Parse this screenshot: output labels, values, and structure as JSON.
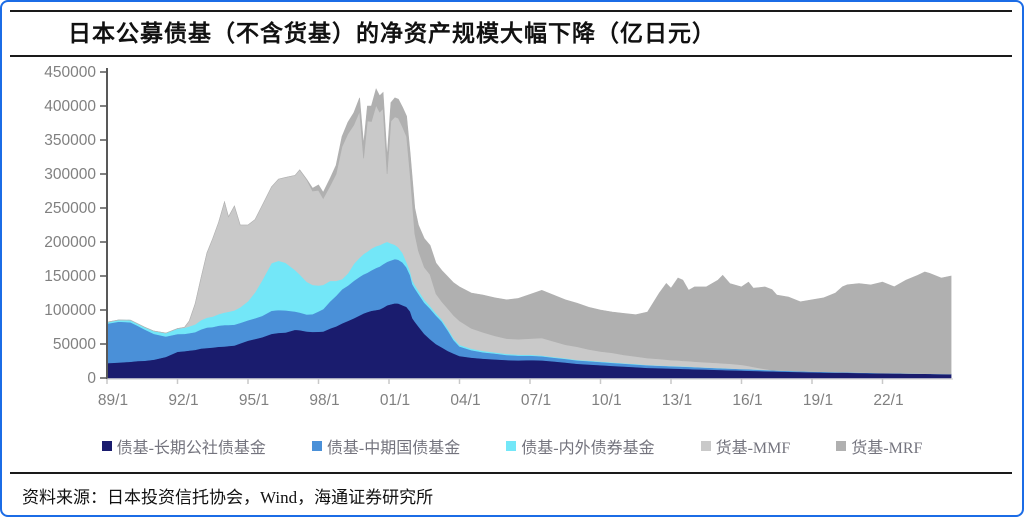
{
  "card": {
    "title": "日本公募债基（不含货基）的净资产规模大幅下降（亿日元）",
    "source_text": "资料来源：日本投资信托协会，Wind，海通证券研究所"
  },
  "colors": {
    "border_blue": "#1b6ce6",
    "rule_black": "#1a1a1a",
    "axis_dark": "#595959",
    "axis_light": "#c9c9c9",
    "tick_label_gray": "#808080"
  },
  "chart_data": {
    "type": "area",
    "stacked": true,
    "title": "日本公募债基（不含货基）的净资产规模大幅下降（亿日元）",
    "unit": "亿日元",
    "xlim": [
      1989,
      2025
    ],
    "ylim": [
      0,
      450000
    ],
    "grid": false,
    "legend_position": "bottom",
    "y_ticks": [
      0,
      50000,
      100000,
      150000,
      200000,
      250000,
      300000,
      350000,
      400000,
      450000
    ],
    "x_tick_labels": [
      "89/1",
      "92/1",
      "95/1",
      "98/1",
      "01/1",
      "04/1",
      "07/1",
      "10/1",
      "13/1",
      "16/1",
      "19/1",
      "22/1"
    ],
    "x_tick_years": [
      1989,
      1992,
      1995,
      1998,
      2001,
      2004,
      2007,
      2010,
      2013,
      2016,
      2019,
      2022
    ],
    "x": [
      1989,
      1989.5,
      1990,
      1990.3,
      1990.6,
      1991,
      1991.5,
      1992,
      1992.3,
      1992.5,
      1992.75,
      1993,
      1993.25,
      1993.5,
      1993.75,
      1994,
      1994.17,
      1994.42,
      1994.67,
      1995,
      1995.3,
      1995.6,
      1996,
      1996.3,
      1996.6,
      1997,
      1997.2,
      1997.5,
      1997.75,
      1998,
      1998.2,
      1998.5,
      1998.75,
      1999,
      1999.25,
      1999.5,
      1999.75,
      1999.92,
      2000.08,
      2000.25,
      2000.45,
      2000.6,
      2000.75,
      2000.92,
      2001.08,
      2001.25,
      2001.4,
      2001.58,
      2001.75,
      2001.9,
      2002,
      2002.1,
      2002.25,
      2002.5,
      2002.75,
      2003,
      2003.25,
      2003.5,
      2003.75,
      2004,
      2004.5,
      2005,
      2005.5,
      2006,
      2006.5,
      2007,
      2007.5,
      2008,
      2008.5,
      2009,
      2009.5,
      2010,
      2010.5,
      2011,
      2011.5,
      2012,
      2012.5,
      2012.8,
      2013,
      2013.3,
      2013.5,
      2013.75,
      2014,
      2014.5,
      2015,
      2015.2,
      2015.5,
      2016,
      2016.3,
      2016.5,
      2017,
      2017.3,
      2017.5,
      2018,
      2018.5,
      2019,
      2019.5,
      2020,
      2020.3,
      2020.5,
      2021,
      2021.5,
      2022,
      2022.5,
      2023,
      2023.5,
      2023.8,
      2024,
      2024.5,
      2024.92
    ],
    "series": [
      {
        "name": "债基-长期公社债基金",
        "color": "#1a1c6e",
        "values": [
          22000,
          23000,
          24000,
          25000,
          25500,
          27000,
          31000,
          38700,
          39500,
          40500,
          41500,
          43600,
          44300,
          45000,
          46000,
          46500,
          47000,
          48000,
          51000,
          55000,
          57500,
          60000,
          65000,
          66500,
          67000,
          71000,
          70500,
          68500,
          68000,
          68100,
          68500,
          73100,
          76000,
          80400,
          84000,
          88000,
          92000,
          95000,
          97000,
          99000,
          100000,
          101000,
          103500,
          107000,
          108500,
          110000,
          109500,
          107000,
          104500,
          98000,
          88000,
          83000,
          76000,
          65000,
          57000,
          50000,
          45000,
          40000,
          36000,
          32500,
          30000,
          28500,
          27500,
          26500,
          26000,
          26500,
          26000,
          24500,
          23000,
          21000,
          20000,
          19000,
          18000,
          17000,
          16000,
          15000,
          14500,
          14200,
          14000,
          13800,
          13600,
          13400,
          13000,
          12500,
          12000,
          11800,
          11500,
          11000,
          10800,
          10600,
          10000,
          9800,
          9600,
          9200,
          8800,
          8500,
          8200,
          8000,
          7900,
          7800,
          7500,
          7200,
          7000,
          6800,
          6600,
          6400,
          6300,
          6200,
          6000,
          5900
        ]
      },
      {
        "name": "债基-中期国债基金",
        "color": "#4a90d8",
        "values": [
          58000,
          60000,
          58000,
          52000,
          46000,
          38000,
          30000,
          26000,
          25500,
          25500,
          26000,
          28000,
          30000,
          30000,
          31000,
          31500,
          31000,
          30500,
          30000,
          30000,
          30500,
          31500,
          34000,
          33500,
          32500,
          27000,
          26000,
          25000,
          26000,
          30000,
          33000,
          40000,
          45000,
          50000,
          52000,
          55000,
          57000,
          57500,
          58000,
          59500,
          62000,
          63000,
          64000,
          64000,
          64500,
          65000,
          64500,
          63000,
          58000,
          53000,
          50000,
          49000,
          48000,
          46000,
          45000,
          42000,
          38000,
          30000,
          20000,
          14000,
          11000,
          9500,
          8500,
          7500,
          7000,
          6500,
          6000,
          5500,
          5200,
          5000,
          4800,
          4600,
          4400,
          4200,
          4000,
          3800,
          3600,
          3500,
          3400,
          3300,
          3200,
          3100,
          3000,
          2800,
          2600,
          2500,
          2400,
          2200,
          2100,
          2000,
          1800,
          1700,
          1600,
          1400,
          1200,
          1000,
          900,
          800,
          750,
          700,
          600,
          500,
          400,
          300,
          250,
          200,
          180,
          150,
          120,
          100
        ]
      },
      {
        "name": "债基-内外债券基金",
        "color": "#73e7f8",
        "values": [
          2000,
          2500,
          3000,
          3000,
          3200,
          4000,
          5000,
          8000,
          9000,
          10000,
          11500,
          13500,
          14500,
          15500,
          17000,
          18500,
          19500,
          21000,
          23000,
          28000,
          38000,
          52000,
          70000,
          72500,
          70000,
          61000,
          56000,
          48000,
          43000,
          38000,
          35500,
          30000,
          22000,
          15000,
          18000,
          25000,
          28000,
          30000,
          31000,
          32000,
          32000,
          31500,
          30500,
          29500,
          25000,
          21000,
          18000,
          14000,
          8000,
          6000,
          5500,
          5200,
          5000,
          4500,
          4000,
          3500,
          3200,
          3000,
          2800,
          2500,
          2200,
          2000,
          1800,
          1600,
          1400,
          1200,
          1100,
          1000,
          900,
          800,
          750,
          700,
          650,
          600,
          550,
          500,
          450,
          430,
          400,
          380,
          360,
          340,
          320,
          300,
          280,
          270,
          260,
          240,
          230,
          220,
          200,
          190,
          180,
          160,
          140,
          120,
          110,
          100,
          95,
          90,
          80,
          70,
          60,
          50,
          40,
          30,
          25,
          20,
          15,
          10
        ]
      },
      {
        "name": "货基-MMF",
        "color": "#c9c9c9",
        "values": [
          0,
          0,
          0,
          0,
          0,
          0,
          0,
          0,
          500,
          8000,
          30000,
          62000,
          95000,
          115000,
          135000,
          162500,
          139500,
          153500,
          121000,
          112000,
          107000,
          110000,
          112000,
          120000,
          125500,
          139000,
          153500,
          150000,
          138000,
          139900,
          127000,
          140000,
          157000,
          194600,
          205000,
          204000,
          215000,
          140500,
          192000,
          186500,
          207000,
          195500,
          198000,
          99500,
          180000,
          188000,
          190000,
          185000,
          184500,
          141000,
          111500,
          75000,
          58000,
          47500,
          46000,
          28500,
          25800,
          29000,
          33200,
          35000,
          29800,
          27000,
          24200,
          22400,
          22600,
          23800,
          25900,
          23000,
          19900,
          19200,
          16450,
          14700,
          13950,
          12200,
          11000,
          10000,
          9450,
          8870,
          8500,
          8520,
          8200,
          8000,
          7800,
          7500,
          7200,
          7000,
          6800,
          6000,
          4600,
          3500,
          1200,
          0,
          0,
          0,
          0,
          0,
          0,
          0,
          0,
          0,
          0,
          0,
          0,
          0,
          0,
          0,
          0,
          0,
          0,
          0
        ]
      },
      {
        "name": "货基-MRF",
        "color": "#b0b0b0",
        "values": [
          0,
          0,
          0,
          0,
          0,
          0,
          0,
          0,
          0,
          0,
          0,
          0,
          0,
          0,
          0,
          0,
          0,
          0,
          0,
          0,
          0,
          0,
          0,
          0,
          0,
          0,
          0,
          500,
          4000,
          8000,
          9000,
          11000,
          13000,
          15000,
          17000,
          18000,
          20000,
          21000,
          22000,
          23000,
          24000,
          24000,
          24000,
          25000,
          27000,
          28000,
          28000,
          29000,
          30000,
          32000,
          35000,
          37800,
          38000,
          42000,
          43000,
          45000,
          46000,
          47000,
          48000,
          50000,
          52000,
          55000,
          56000,
          57000,
          60000,
          65000,
          70000,
          68000,
          66000,
          64000,
          62000,
          61000,
          60000,
          61000,
          61500,
          67700,
          97000,
          112000,
          105700,
          121000,
          118600,
          104200,
          109900,
          110900,
          121900,
          129400,
          118000,
          114600,
          123300,
          115700,
          120800,
          118300,
          110600,
          108200,
          101900,
          105400,
          108800,
          116100,
          125300,
          128400,
          130800,
          129200,
          133500,
          126900,
          137100,
          144400,
          149500,
          147600,
          140900,
          144000
        ]
      }
    ]
  }
}
